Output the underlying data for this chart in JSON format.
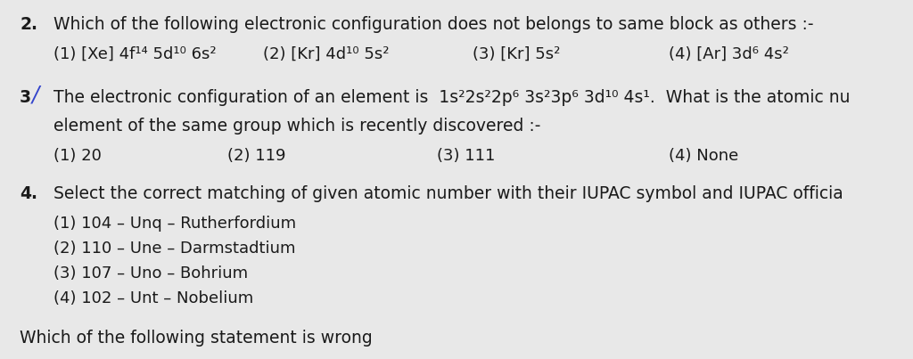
{
  "background_color": "#e8e8e8",
  "text_color": "#1a1a1a",
  "q2_number": "2.",
  "q2_main": "Which of the following electronic configuration does not belongs to same block as others :-",
  "q2_opt1": "(1) [Xe] 4f¹⁴ 5d¹⁰ 6s²",
  "q2_opt2": "(2) [Kr] 4d¹⁰ 5s²",
  "q2_opt3": "(3) [Kr] 5s²",
  "q2_opt4": "(4) [Ar] 3d⁶ 4s²",
  "q3_main": "The electronic configuration of an element is  1s²2s²2p⁶ 3s²3p⁶ 3d¹⁰ 4s¹.  What is the atomic nu",
  "q3_cont": "element of the same group which is recently discovered :-",
  "q3_opt1": "(1) 20",
  "q3_opt2": "(2) 119",
  "q3_opt3": "(3) 111",
  "q3_opt4": "(4) None",
  "q4_number": "4.",
  "q4_main": "Select the correct matching of given atomic number with their IUPAC symbol and IUPAC officia",
  "q4_opt1": "(1) 104 – Unq – Rutherfordium",
  "q4_opt2": "(2) 110 – Une – Darmstadtium",
  "q4_opt3": "(3) 107 – Uno – Bohrium",
  "q4_opt4": "(4) 102 – Unt – Nobelium",
  "q5_start": "Which of the following statement is wrong",
  "fs_main": 13.5,
  "fs_opt": 13.0
}
